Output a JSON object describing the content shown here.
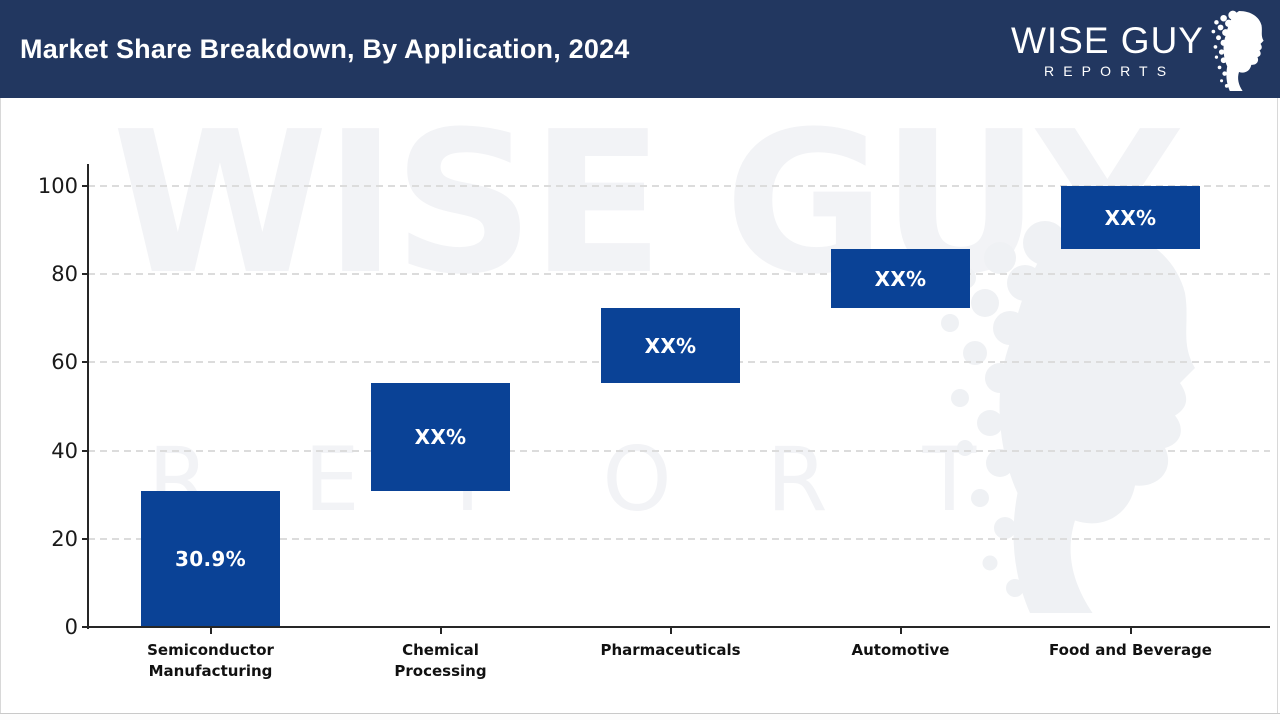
{
  "header": {
    "title": "Market Share Breakdown, By Application, 2024",
    "logo": {
      "line1": "WISE GUY",
      "line2": "REPORTS"
    }
  },
  "watermark": {
    "line1": "WISE GUY",
    "line2": "R E P O R T S"
  },
  "chart_data": {
    "type": "bar",
    "subtype": "waterfall",
    "title": "Market Share Breakdown, By Application, 2024",
    "categories": [
      "Semiconductor Manufacturing",
      "Chemical Processing",
      "Pharmaceuticals",
      "Automotive",
      "Food and Beverage"
    ],
    "category_label_lines": [
      [
        "Semiconductor",
        "Manufacturing"
      ],
      [
        "Chemical",
        "Processing"
      ],
      [
        "Pharmaceuticals"
      ],
      [
        "Automotive"
      ],
      [
        "Food and Beverage"
      ]
    ],
    "segments": [
      {
        "category": "Semiconductor Manufacturing",
        "start": 0,
        "end": 30.9,
        "label": "30.9%"
      },
      {
        "category": "Chemical Processing",
        "start": 30.9,
        "end": 55.3,
        "label": "XX%"
      },
      {
        "category": "Pharmaceuticals",
        "start": 55.3,
        "end": 72.3,
        "label": "XX%"
      },
      {
        "category": "Automotive",
        "start": 72.3,
        "end": 85.7,
        "label": "XX%"
      },
      {
        "category": "Food and Beverage",
        "start": 85.7,
        "end": 100,
        "label": "XX%"
      }
    ],
    "yticks": [
      0,
      20,
      40,
      60,
      80,
      100
    ],
    "ylim": [
      0,
      105
    ],
    "xlabel": "",
    "ylabel": "",
    "grid": "horizontal-dashed",
    "legend": null,
    "bar_color": "#0a4296"
  },
  "colors": {
    "header_bg": "#223760",
    "bar": "#0a4296",
    "grid": "#dcdcdc",
    "axis": "#262626",
    "tick_text": "#1a1a1a",
    "title_text": "#ffffff",
    "bar_label_text": "#ffffff",
    "watermark": "#f2f3f6"
  }
}
